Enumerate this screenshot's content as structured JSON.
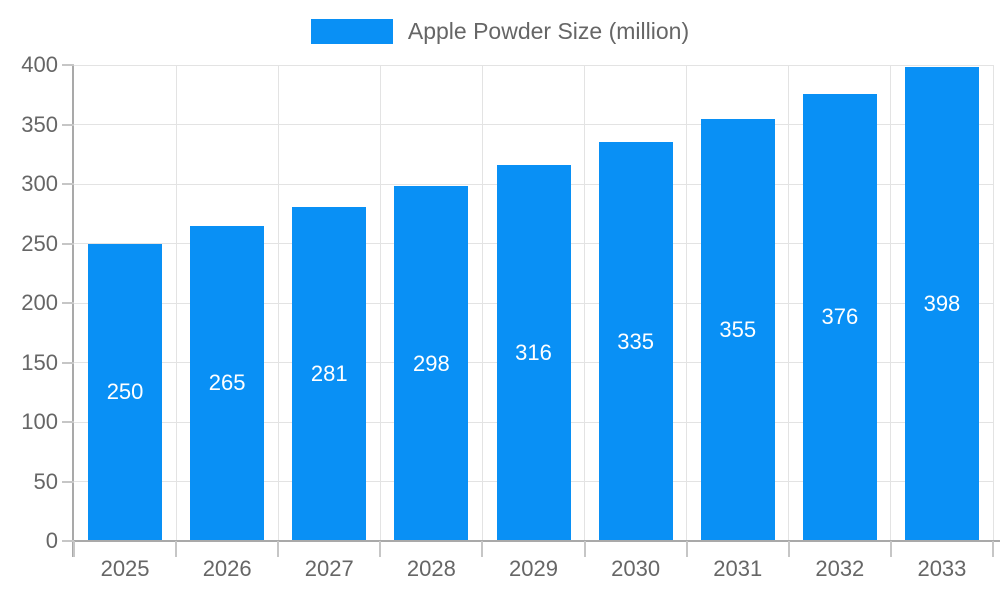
{
  "legend": {
    "label": "Apple Powder Size (million)"
  },
  "chart_data": {
    "type": "bar",
    "title": "Apple Powder Size (million)",
    "categories": [
      "2025",
      "2026",
      "2027",
      "2028",
      "2029",
      "2030",
      "2031",
      "2032",
      "2033"
    ],
    "values": [
      250,
      265,
      281,
      298,
      316,
      335,
      355,
      376,
      398
    ],
    "xlabel": "",
    "ylabel": "",
    "ylim": [
      0,
      400
    ],
    "yticks": [
      0,
      50,
      100,
      150,
      200,
      250,
      300,
      350,
      400
    ],
    "grid": true,
    "legend_position": "top",
    "bar_color": "#0990f5",
    "bar_label_color": "#ffffff",
    "axis_color": "#a9a9a9",
    "tick_color": "#c6c6c6",
    "grid_color": "#e3e3e3",
    "text_color": "#666666"
  }
}
